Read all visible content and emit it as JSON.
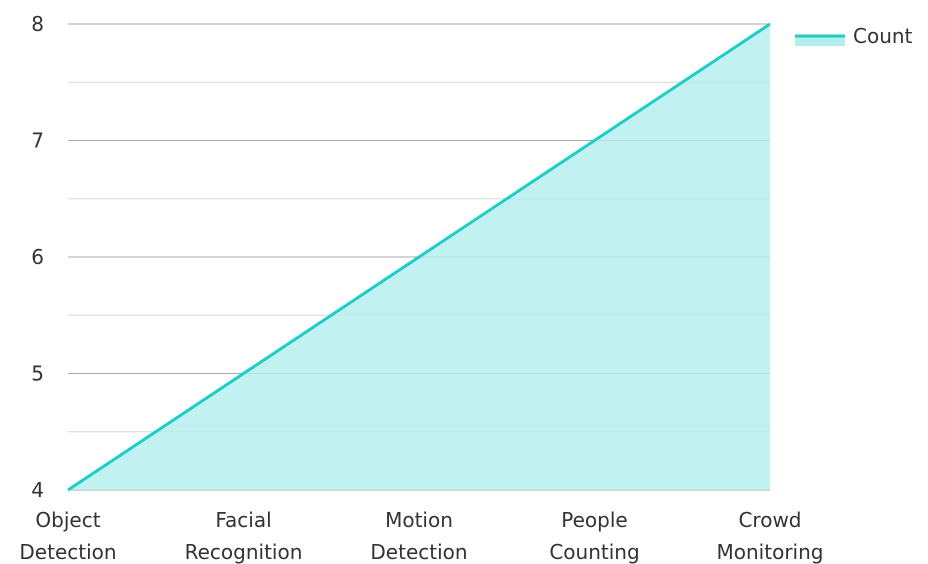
{
  "chart_data": {
    "type": "area",
    "categories": [
      "Object Detection",
      "Facial Recognition",
      "Motion Detection",
      "People Counting",
      "Crowd Monitoring"
    ],
    "series": [
      {
        "name": "Count",
        "values": [
          4,
          5,
          6,
          7,
          8
        ]
      }
    ],
    "ylim": [
      4,
      8
    ],
    "yticks": [
      4,
      5,
      6,
      7,
      8
    ],
    "grid": true,
    "legend_position": "top-right",
    "colors": {
      "line": "#1ecdc6",
      "fill": "#b2eeee",
      "grid_major": "#aaaaaa",
      "grid_minor": "#d8d8d8"
    }
  }
}
